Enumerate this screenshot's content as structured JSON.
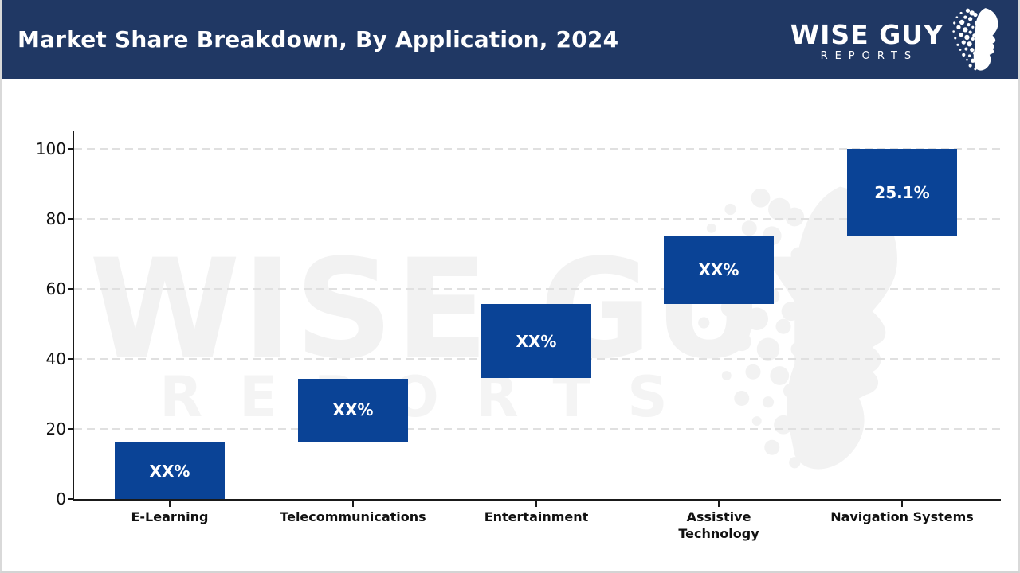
{
  "header": {
    "title": "Market Share Breakdown, By Application, 2024",
    "logo": {
      "line1": "WISE GUY",
      "line2": "REPORTS"
    }
  },
  "watermark": {
    "line1": "WISE GUY",
    "line2": "REPORTS"
  },
  "colors": {
    "header_bg": "#203864",
    "bar": "#0a4396",
    "bar_label": "#ffffff",
    "grid": "#e0e0e0",
    "axis": "#1a1a1a",
    "watermark": "#f2f2f2"
  },
  "chart_data": {
    "type": "bar",
    "variant": "waterfall",
    "title": "Market Share Breakdown, By Application, 2024",
    "xlabel": "",
    "ylabel": "",
    "categories": [
      "E-Learning",
      "Telecommunications",
      "Entertainment",
      "Assistive\nTechnology",
      "Navigation Systems"
    ],
    "segments": [
      {
        "category": "E-Learning",
        "from": 0,
        "to": 16.1,
        "label": "XX%"
      },
      {
        "category": "Telecommunications",
        "from": 16.4,
        "to": 34.3,
        "label": "XX%"
      },
      {
        "category": "Entertainment",
        "from": 34.5,
        "to": 55.7,
        "label": "XX%"
      },
      {
        "category": "Assistive Technology",
        "from": 55.7,
        "to": 75.0,
        "label": "XX%"
      },
      {
        "category": "Navigation Systems",
        "from": 75.0,
        "to": 100.1,
        "label": "25.1%"
      }
    ],
    "yticks": [
      0,
      20,
      40,
      60,
      80,
      100
    ],
    "ylim": [
      0,
      105
    ],
    "grid": "horizontal-dashed",
    "legend": "none"
  }
}
